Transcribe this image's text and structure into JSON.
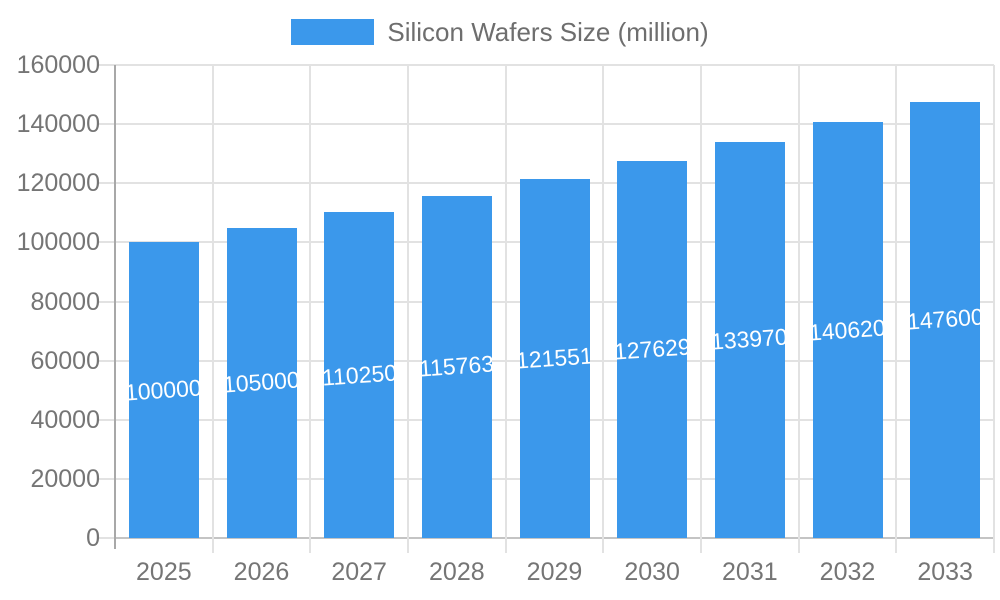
{
  "legend": {
    "label": "Silicon Wafers Size (million)",
    "swatch_icon": "legend-color-swatch"
  },
  "chart_data": {
    "type": "bar",
    "title": "",
    "xlabel": "",
    "ylabel": "",
    "categories": [
      "2025",
      "2026",
      "2027",
      "2028",
      "2029",
      "2030",
      "2031",
      "2032",
      "2033"
    ],
    "series": [
      {
        "name": "Silicon Wafers Size (million)",
        "values": [
          100000,
          105000,
          110250,
          115763,
          121551,
          127629,
          133970,
          140620,
          147600
        ],
        "bar_labels": [
          "100000",
          "105000",
          "110250",
          "115763",
          "121551",
          "127629",
          "133970",
          "140620",
          "147600"
        ]
      }
    ],
    "ylim": [
      0,
      160000
    ],
    "y_ticks": [
      0,
      20000,
      40000,
      60000,
      80000,
      100000,
      120000,
      140000,
      160000
    ],
    "grid": true,
    "legend_position": "top"
  },
  "colors": {
    "bar": "#3B98EB",
    "grid": "#E2E2E2",
    "baseline": "#C4C4C4",
    "axis_line": "#A8A8A8",
    "axis_text": "#757575",
    "legend_text": "#6E6E6E",
    "bar_label_text": "#FFFFFF",
    "background": "#FFFFFF"
  }
}
